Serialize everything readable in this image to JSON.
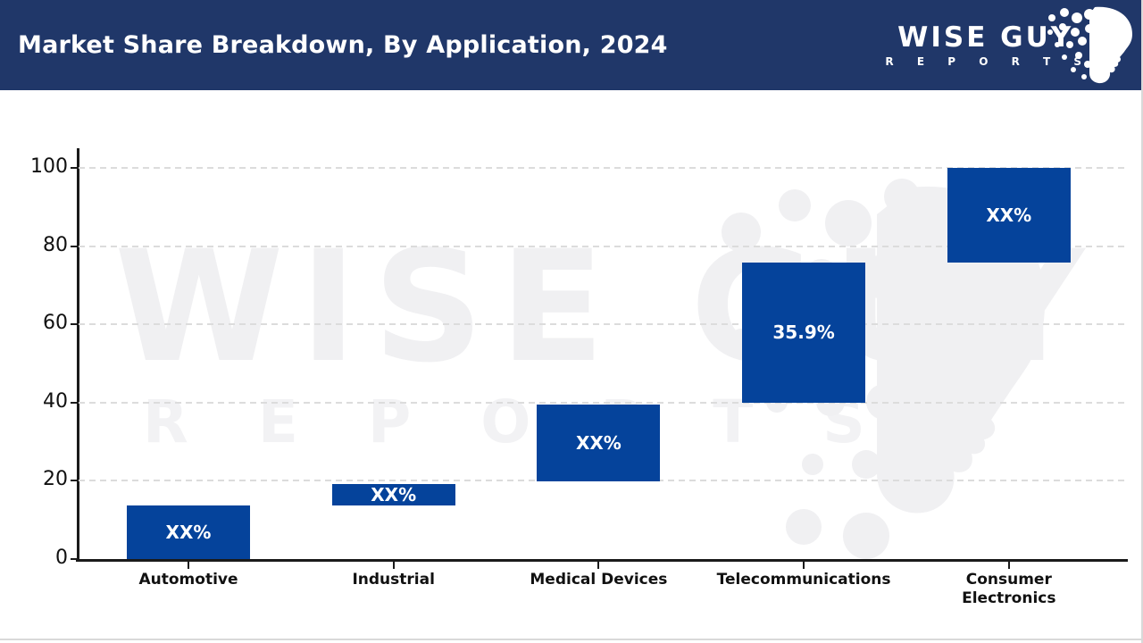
{
  "header": {
    "title": "Market Share Breakdown, By Application, 2024",
    "logo": {
      "line1": "WISE GUY",
      "line2": "R E P O R T S"
    }
  },
  "watermark": {
    "line1": "WISE GUY",
    "line2": "REPORTS"
  },
  "chart_data": {
    "type": "bar",
    "subtype": "waterfall",
    "title": "Market Share Breakdown, By Application, 2024",
    "categories": [
      "Automotive",
      "Industrial",
      "Medical Devices",
      "Telecommunications",
      "Consumer Electronics"
    ],
    "segments": [
      {
        "category": "Automotive",
        "start": 0,
        "end": 13.6,
        "label": "XX%"
      },
      {
        "category": "Industrial",
        "start": 13.6,
        "end": 19.1,
        "label": "XX%"
      },
      {
        "category": "Medical Devices",
        "start": 19.9,
        "end": 39.6,
        "label": "XX%"
      },
      {
        "category": "Telecommunications",
        "start": 40,
        "end": 75.9,
        "label": "35.9%"
      },
      {
        "category": "Consumer Electronics",
        "start": 75.9,
        "end": 100,
        "label": "XX%",
        "tick_label": "Consumer\nElectronics"
      }
    ],
    "xlabel": "",
    "ylabel": "",
    "ylim": [
      0,
      100
    ],
    "yticks": [
      0,
      20,
      40,
      60,
      80,
      100
    ],
    "grid": "horizontal dashed",
    "legend": "none",
    "bar_color": "#05439B",
    "bar_label_color": "#ffffff"
  },
  "colors": {
    "header_bg": "#203769",
    "bar": "#05439B",
    "grid": "#dcdcdc",
    "axis": "#1a1a1a",
    "watermark": "#f0f0f2"
  }
}
